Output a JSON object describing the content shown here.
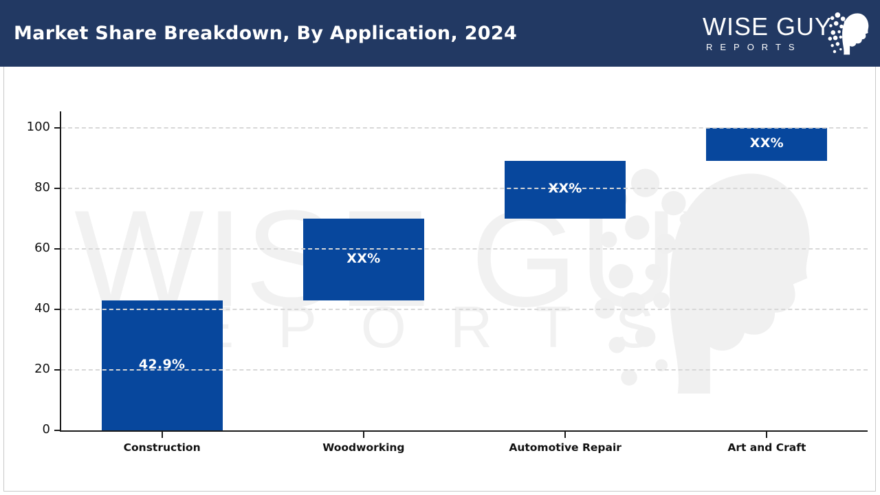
{
  "header": {
    "title": "Market Share Breakdown, By Application, 2024",
    "bg_color": "#223963",
    "logo": {
      "line1": "WISE GUY",
      "line2": "REPORTS"
    }
  },
  "watermark": {
    "line1": "WISE GUY",
    "line2": "REPORTS"
  },
  "chart_data": {
    "type": "bar",
    "subtype": "waterfall",
    "title": "",
    "xlabel": "",
    "ylabel": "",
    "categories": [
      "Construction",
      "Woodworking",
      "Automotive Repair",
      "Art and Craft"
    ],
    "segments": [
      {
        "category": "Construction",
        "start": 0,
        "end": 42.9,
        "label": "42.9%"
      },
      {
        "category": "Woodworking",
        "start": 42.9,
        "end": 70,
        "label": "XX%"
      },
      {
        "category": "Automotive Repair",
        "start": 70,
        "end": 89,
        "label": "XX%"
      },
      {
        "category": "Art and Craft",
        "start": 89,
        "end": 100,
        "label": "XX%"
      }
    ],
    "ylim": [
      0,
      100
    ],
    "yticks": [
      0,
      20,
      40,
      60,
      80,
      100
    ],
    "grid": true,
    "grid_style": "dashed",
    "legend": "none",
    "bar_color": "#07479d",
    "value_label_color": "#ffffff"
  }
}
